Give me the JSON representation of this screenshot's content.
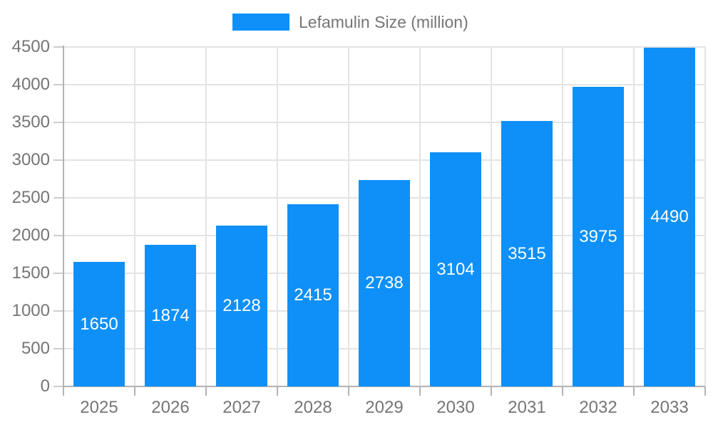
{
  "chart_data": {
    "type": "bar",
    "title": "",
    "legend": {
      "label": "Lefamulin Size (million)",
      "position": "top"
    },
    "categories": [
      "2025",
      "2026",
      "2027",
      "2028",
      "2029",
      "2030",
      "2031",
      "2032",
      "2033"
    ],
    "series": [
      {
        "name": "Lefamulin Size (million)",
        "values": [
          1650,
          1874,
          2128,
          2415,
          2738,
          3104,
          3515,
          3975,
          4490
        ]
      }
    ],
    "value_labels": [
      "1650",
      "1874",
      "2128",
      "2415",
      "2738",
      "3104",
      "3515",
      "3975",
      "4490"
    ],
    "xlabel": "",
    "ylabel": "",
    "ylim": [
      0,
      4500
    ],
    "y_tick_step": 500,
    "y_tick_labels": [
      "0",
      "500",
      "1000",
      "1500",
      "2000",
      "2500",
      "3000",
      "3500",
      "4000",
      "4500"
    ],
    "grid": true,
    "legend_position": "top",
    "colors": {
      "bar": "#0e90f8",
      "value_label": "#ffffff",
      "axis_label": "#757575",
      "axis_line": "#b3b3b3",
      "gridline": "#e4e4e4",
      "background": "#ffffff"
    }
  }
}
